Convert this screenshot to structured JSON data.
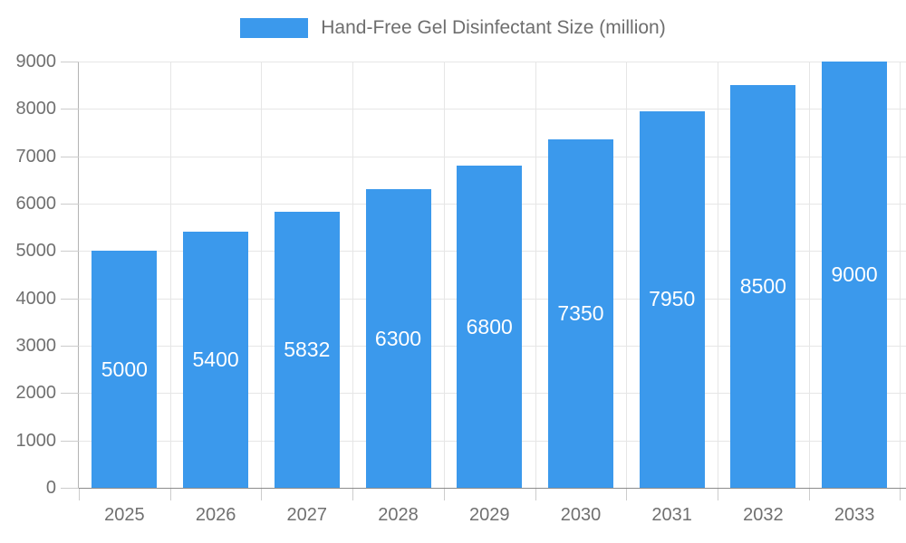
{
  "chart_data": {
    "type": "bar",
    "title": "Hand-Free Gel Disinfectant Size (million)",
    "categories": [
      "2025",
      "2026",
      "2027",
      "2028",
      "2029",
      "2030",
      "2031",
      "2032",
      "2033"
    ],
    "values": [
      5000,
      5400,
      5832,
      6300,
      6800,
      7350,
      7950,
      8500,
      9000
    ],
    "xlabel": "",
    "ylabel": "",
    "ylim": [
      0,
      9000
    ],
    "y_ticks": [
      0,
      1000,
      2000,
      3000,
      4000,
      5000,
      6000,
      7000,
      8000,
      9000
    ],
    "grid": true,
    "legend_position": "top",
    "bar_label_position": "inside-center",
    "colors": {
      "bar": "#3B99EC",
      "bar_label": "#FFFFFF",
      "grid": "#E6E6E6",
      "axis_text": "#707070",
      "legend_text": "#6E6E6E",
      "y_axis_line": "#B3B3B3",
      "x_axis_line": "#8C8C8C",
      "tick": "#CCCCCC",
      "background": "#FFFFFF"
    }
  }
}
